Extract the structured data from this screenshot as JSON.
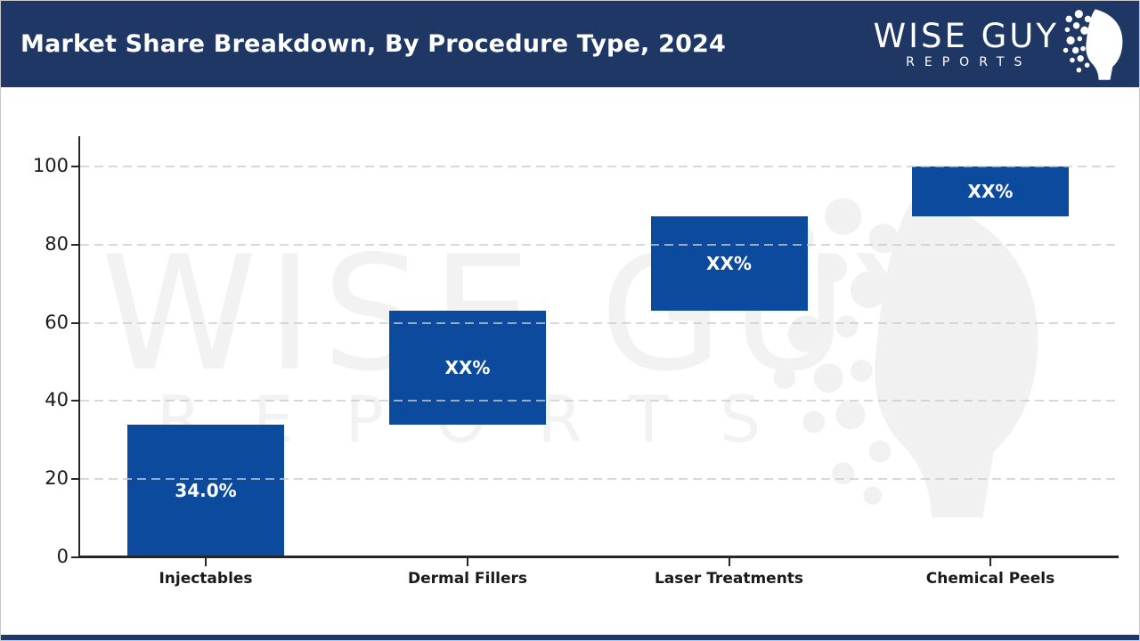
{
  "header": {
    "title": "Market Share Breakdown, By Procedure Type, 2024",
    "logo_line1": "WISE GUY",
    "logo_line2": "REPORTS"
  },
  "watermark": {
    "line1": "WISE GUY",
    "line2": "REPORTS"
  },
  "colors": {
    "header_bg": "#1f3765",
    "bar": "#0c4a9d",
    "gridline": "#cbcbcb",
    "axis": "#262626",
    "watermark": "#f2f2f2"
  },
  "chart_data": {
    "type": "bar",
    "subtype": "waterfall",
    "title": "Market Share Breakdown, By Procedure Type, 2024",
    "categories": [
      "Injectables",
      "Dermal Fillers",
      "Laser Treatments",
      "Chemical Peels"
    ],
    "segments": [
      {
        "category": "Injectables",
        "start": 0,
        "end": 34,
        "label": "34.0%"
      },
      {
        "category": "Dermal Fillers",
        "start": 34,
        "end": 63.2,
        "label": "XX%"
      },
      {
        "category": "Laser Treatments",
        "start": 63.2,
        "end": 87.3,
        "label": "XX%"
      },
      {
        "category": "Chemical Peels",
        "start": 87.3,
        "end": 100,
        "label": "XX%"
      }
    ],
    "xlabel": "",
    "ylabel": "",
    "yticks": [
      0,
      20,
      40,
      60,
      80,
      100
    ],
    "ylim": [
      0,
      108
    ],
    "grid": "dashed-horizontal",
    "legend": "none"
  }
}
